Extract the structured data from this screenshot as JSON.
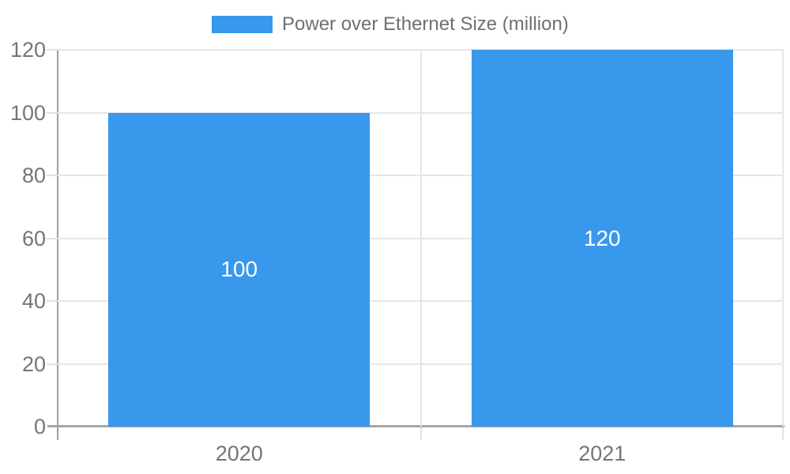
{
  "chart_data": {
    "type": "bar",
    "title": "",
    "legend_label": "Power over Ethernet Size (million)",
    "legend_position": "top",
    "categories": [
      "2020",
      "2021"
    ],
    "series": [
      {
        "name": "Power over Ethernet Size (million)",
        "values": [
          100,
          120
        ]
      }
    ],
    "value_labels": [
      "100",
      "120"
    ],
    "ylim": [
      0,
      120
    ],
    "yticks": [
      0,
      20,
      40,
      60,
      80,
      100,
      120
    ],
    "grid": true,
    "colors": {
      "bar": "#3898ec",
      "value_label": "#ffffff",
      "axis_text": "#757575",
      "legend_text": "#6f6f6f",
      "gridline": "#e6e6e6",
      "axis_line": "#9e9e9e",
      "baseline": "#a6a6a6",
      "tick": "#e0e0e0",
      "background": "#ffffff"
    }
  }
}
